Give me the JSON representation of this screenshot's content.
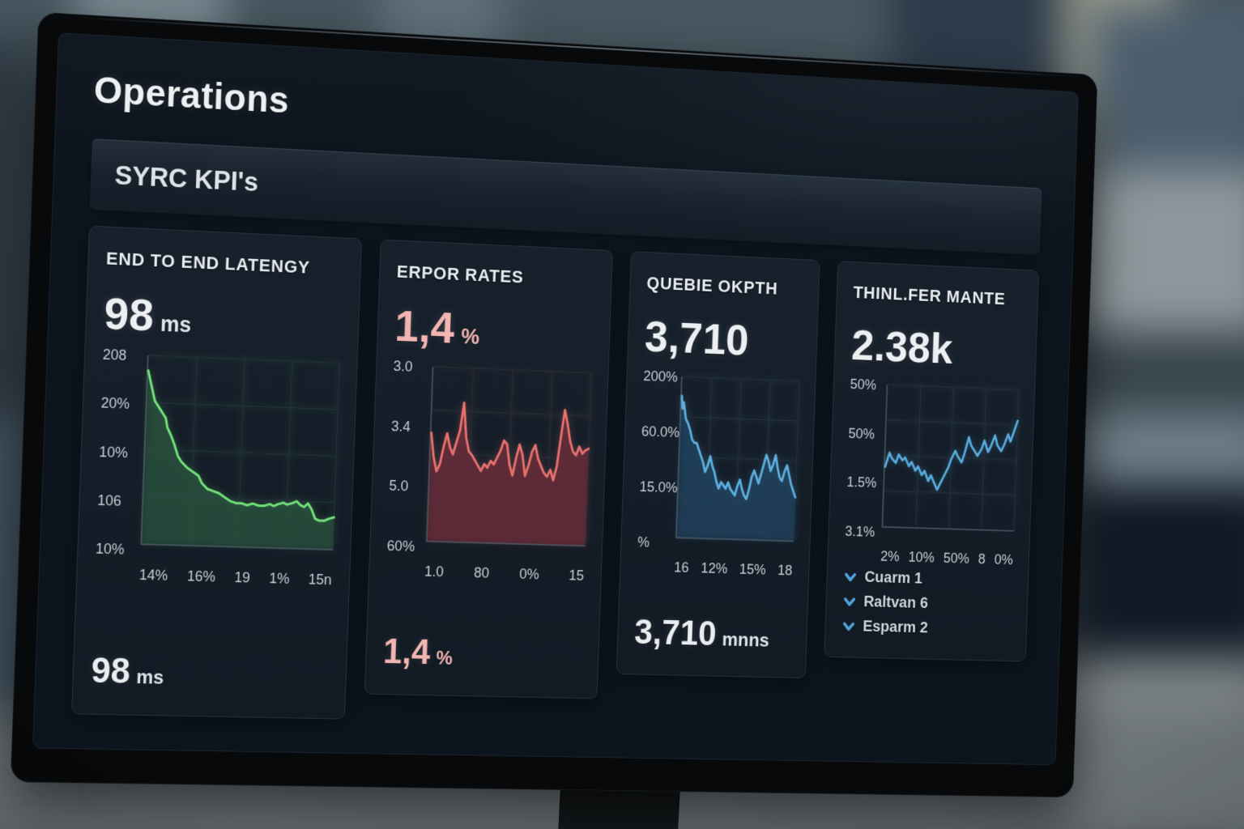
{
  "page": {
    "title": "Operations"
  },
  "kpi_bar": {
    "label": "SYRC KPI's"
  },
  "colors": {
    "title_text": "#edf1f4",
    "screen_bg": "#0c141d",
    "card_bg": "#141d27",
    "axis_text": "#c7d0d8",
    "latency_line": "#72e178",
    "error_line": "#e8716d",
    "error_value": "#f2b5b1",
    "queue_line": "#5caede",
    "throughput_line": "#56aadc",
    "legend_chevron": "#4fa3d9"
  },
  "cards": [
    {
      "title": "END TO END LATENGY",
      "value": "98",
      "unit": "ms",
      "footer_value": "98",
      "footer_unit": "ms"
    },
    {
      "title": "ERPOR RATES",
      "value": "1,4",
      "unit": "%",
      "footer_value": "1,4",
      "footer_unit": "%"
    },
    {
      "title": "QUEBIE OKPTH",
      "value": "3,710",
      "unit": "",
      "footer_value": "3,710",
      "footer_unit": "mnns"
    },
    {
      "title": "THINL.FER MANTE",
      "value": "2.38k",
      "unit": "",
      "legend": [
        {
          "label": "Cuarm 1"
        },
        {
          "label": "Raltvan 6"
        },
        {
          "label": "Esparm 2"
        }
      ]
    }
  ],
  "chart_data": [
    {
      "type": "area",
      "title": "END TO END LATENGY",
      "line_color": "#72e178",
      "fill_color": "rgba(47,102,70,0.38)",
      "y_ticks": [
        "208",
        "20%",
        "10%",
        "106",
        "10%"
      ],
      "x_ticks": [
        "14%",
        "16%",
        "19",
        "1%",
        "15n"
      ],
      "points": [
        [
          0,
          92
        ],
        [
          2,
          84
        ],
        [
          4,
          76
        ],
        [
          6,
          73
        ],
        [
          8,
          70
        ],
        [
          10,
          67
        ],
        [
          11,
          62
        ],
        [
          13,
          58
        ],
        [
          15,
          53
        ],
        [
          17,
          47
        ],
        [
          19,
          44
        ],
        [
          22,
          41
        ],
        [
          25,
          39
        ],
        [
          28,
          37
        ],
        [
          30,
          33
        ],
        [
          33,
          30
        ],
        [
          36,
          29
        ],
        [
          39,
          28
        ],
        [
          42,
          26
        ],
        [
          45,
          24
        ],
        [
          48,
          23
        ],
        [
          51,
          23
        ],
        [
          54,
          22
        ],
        [
          57,
          23
        ],
        [
          60,
          22
        ],
        [
          63,
          22
        ],
        [
          66,
          23
        ],
        [
          68,
          22
        ],
        [
          70,
          23
        ],
        [
          73,
          24
        ],
        [
          75,
          23
        ],
        [
          78,
          24
        ],
        [
          80,
          25
        ],
        [
          82,
          23
        ],
        [
          84,
          22
        ],
        [
          86,
          24
        ],
        [
          88,
          21
        ],
        [
          90,
          16
        ],
        [
          92,
          15
        ],
        [
          95,
          15
        ],
        [
          97,
          16
        ],
        [
          100,
          17
        ]
      ]
    },
    {
      "type": "area",
      "title": "ERPOR RATES",
      "line_color": "#e8716d",
      "fill_color": "rgba(122,41,58,0.55)",
      "y_ticks": [
        "3.0",
        "3.4",
        "5.0",
        "60%"
      ],
      "x_ticks": [
        "1.0",
        "80",
        "0%",
        "15"
      ],
      "points": [
        [
          0,
          62
        ],
        [
          2,
          48
        ],
        [
          4,
          40
        ],
        [
          6,
          44
        ],
        [
          8,
          54
        ],
        [
          10,
          62
        ],
        [
          12,
          54
        ],
        [
          14,
          50
        ],
        [
          16,
          57
        ],
        [
          18,
          64
        ],
        [
          20,
          80
        ],
        [
          21,
          70
        ],
        [
          22,
          60
        ],
        [
          24,
          52
        ],
        [
          26,
          50
        ],
        [
          28,
          47
        ],
        [
          30,
          44
        ],
        [
          32,
          41
        ],
        [
          34,
          45
        ],
        [
          36,
          43
        ],
        [
          38,
          47
        ],
        [
          40,
          45
        ],
        [
          42,
          49
        ],
        [
          44,
          53
        ],
        [
          46,
          59
        ],
        [
          48,
          57
        ],
        [
          50,
          45
        ],
        [
          52,
          39
        ],
        [
          54,
          49
        ],
        [
          56,
          57
        ],
        [
          58,
          51
        ],
        [
          60,
          39
        ],
        [
          62,
          45
        ],
        [
          64,
          53
        ],
        [
          66,
          57
        ],
        [
          68,
          49
        ],
        [
          70,
          45
        ],
        [
          72,
          41
        ],
        [
          74,
          39
        ],
        [
          76,
          43
        ],
        [
          78,
          37
        ],
        [
          80,
          45
        ],
        [
          82,
          62
        ],
        [
          84,
          78
        ],
        [
          86,
          70
        ],
        [
          88,
          60
        ],
        [
          90,
          54
        ],
        [
          92,
          52
        ],
        [
          94,
          57
        ],
        [
          96,
          53
        ],
        [
          98,
          55
        ],
        [
          100,
          56
        ]
      ]
    },
    {
      "type": "area",
      "title": "QUEBIE OKPTH",
      "line_color": "#5caede",
      "fill_color": "rgba(32,74,108,0.45)",
      "y_ticks": [
        "200%",
        "60.0%",
        "15.0%",
        "%"
      ],
      "x_ticks": [
        "16",
        "12%",
        "15%",
        "18"
      ],
      "points": [
        [
          0,
          88
        ],
        [
          1,
          80
        ],
        [
          2,
          84
        ],
        [
          4,
          74
        ],
        [
          6,
          71
        ],
        [
          8,
          67
        ],
        [
          10,
          61
        ],
        [
          12,
          59
        ],
        [
          14,
          59
        ],
        [
          16,
          55
        ],
        [
          18,
          51
        ],
        [
          20,
          47
        ],
        [
          22,
          41
        ],
        [
          24,
          45
        ],
        [
          26,
          51
        ],
        [
          28,
          45
        ],
        [
          30,
          41
        ],
        [
          32,
          35
        ],
        [
          34,
          31
        ],
        [
          36,
          35
        ],
        [
          38,
          33
        ],
        [
          40,
          31
        ],
        [
          42,
          35
        ],
        [
          44,
          31
        ],
        [
          46,
          29
        ],
        [
          48,
          27
        ],
        [
          50,
          33
        ],
        [
          52,
          37
        ],
        [
          54,
          31
        ],
        [
          56,
          27
        ],
        [
          58,
          25
        ],
        [
          60,
          31
        ],
        [
          62,
          39
        ],
        [
          64,
          43
        ],
        [
          66,
          39
        ],
        [
          68,
          35
        ],
        [
          70,
          41
        ],
        [
          72,
          47
        ],
        [
          74,
          53
        ],
        [
          76,
          49
        ],
        [
          78,
          43
        ],
        [
          80,
          47
        ],
        [
          82,
          53
        ],
        [
          84,
          45
        ],
        [
          86,
          39
        ],
        [
          88,
          37
        ],
        [
          90,
          43
        ],
        [
          92,
          47
        ],
        [
          94,
          41
        ],
        [
          96,
          35
        ],
        [
          98,
          31
        ],
        [
          100,
          27
        ]
      ]
    },
    {
      "type": "line",
      "title": "THINL.FER MANTE",
      "line_color": "#56aadc",
      "fill_color": null,
      "y_ticks": [
        "50%",
        "50%",
        "1.5%",
        "3.1%"
      ],
      "x_ticks": [
        "2%",
        "10%",
        "50%",
        "8",
        "0%"
      ],
      "points": [
        [
          0,
          42
        ],
        [
          3,
          52
        ],
        [
          5,
          48
        ],
        [
          8,
          45
        ],
        [
          10,
          51
        ],
        [
          13,
          47
        ],
        [
          15,
          49
        ],
        [
          18,
          43
        ],
        [
          20,
          46
        ],
        [
          23,
          40
        ],
        [
          25,
          43
        ],
        [
          28,
          37
        ],
        [
          30,
          40
        ],
        [
          33,
          33
        ],
        [
          35,
          37
        ],
        [
          38,
          31
        ],
        [
          40,
          27
        ],
        [
          43,
          33
        ],
        [
          45,
          37
        ],
        [
          48,
          43
        ],
        [
          50,
          49
        ],
        [
          53,
          55
        ],
        [
          55,
          51
        ],
        [
          58,
          47
        ],
        [
          60,
          53
        ],
        [
          63,
          65
        ],
        [
          65,
          59
        ],
        [
          68,
          55
        ],
        [
          70,
          52
        ],
        [
          73,
          57
        ],
        [
          75,
          63
        ],
        [
          78,
          55
        ],
        [
          80,
          59
        ],
        [
          83,
          67
        ],
        [
          85,
          60
        ],
        [
          88,
          56
        ],
        [
          90,
          60
        ],
        [
          93,
          68
        ],
        [
          95,
          63
        ],
        [
          98,
          72
        ],
        [
          100,
          78
        ]
      ]
    }
  ]
}
